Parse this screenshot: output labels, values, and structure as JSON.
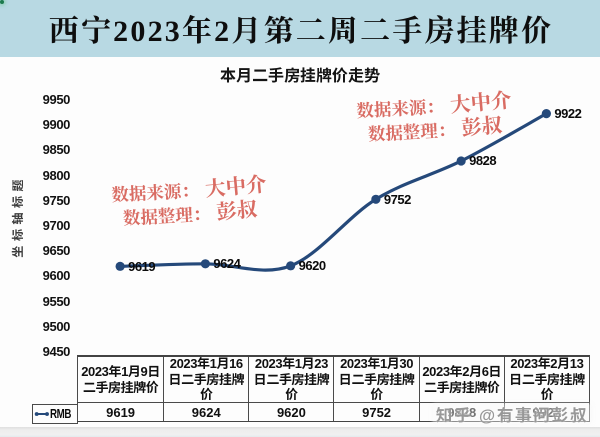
{
  "header": {
    "title": "西宁2023年2月第二周二手房挂牌价"
  },
  "chart": {
    "title": "本月二手房挂牌价走势",
    "y_axis_title": "坐标轴标题"
  },
  "annotations": [
    {
      "source_label": "数据来源：",
      "source_value": "大中介",
      "curator_label": "数据整理：",
      "curator_value": "彭叔"
    },
    {
      "source_label": "数据来源：",
      "source_value": "大中介",
      "curator_label": "数据整理：",
      "curator_value": "彭叔"
    }
  ],
  "legend": {
    "label": "RMB"
  },
  "watermark": "知乎 @有事问彭叔",
  "colors": {
    "title_band_bg": "#b8d9e3",
    "line": "#25497a",
    "annotation_red": "#d96c63",
    "table_border": "#4a4a4a"
  },
  "chart_data": {
    "type": "line",
    "title": "本月二手房挂牌价走势",
    "y_axis_title": "坐标轴标题",
    "categories": [
      "2023年1月9日二手房挂牌价",
      "2023年1月16日二手房挂牌价",
      "2023年1月23日二手房挂牌价",
      "2023年1月30日二手房挂牌价",
      "2023年2月6日二手房挂牌价",
      "2023年2月13日二手房挂牌价"
    ],
    "categories_wrapped": [
      "2023年1月9日\n二手房挂牌价",
      "2023年1月16\n日二手房挂牌\n价",
      "2023年1月23\n日二手房挂牌\n价",
      "2023年1月30\n日二手房挂牌\n价",
      "2023年2月6日\n二手房挂牌价",
      "2023年2月13\n日二手房挂牌\n价"
    ],
    "series": [
      {
        "name": "RMB",
        "values": [
          9619,
          9624,
          9620,
          9752,
          9828,
          9922
        ]
      }
    ],
    "data_labels": [
      "9619",
      "9624",
      "9620",
      "9752",
      "9828",
      "9922"
    ],
    "ylim": [
      9450,
      9950
    ],
    "y_tick_step": 50,
    "y_tick_labels": [
      "9950",
      "9900",
      "9850",
      "9800",
      "9750",
      "9700",
      "9650",
      "9600",
      "9550",
      "9500",
      "9450"
    ],
    "grid": false,
    "smooth": true,
    "marker": "circle",
    "legend_position": "data-table-left",
    "data_table": true
  }
}
